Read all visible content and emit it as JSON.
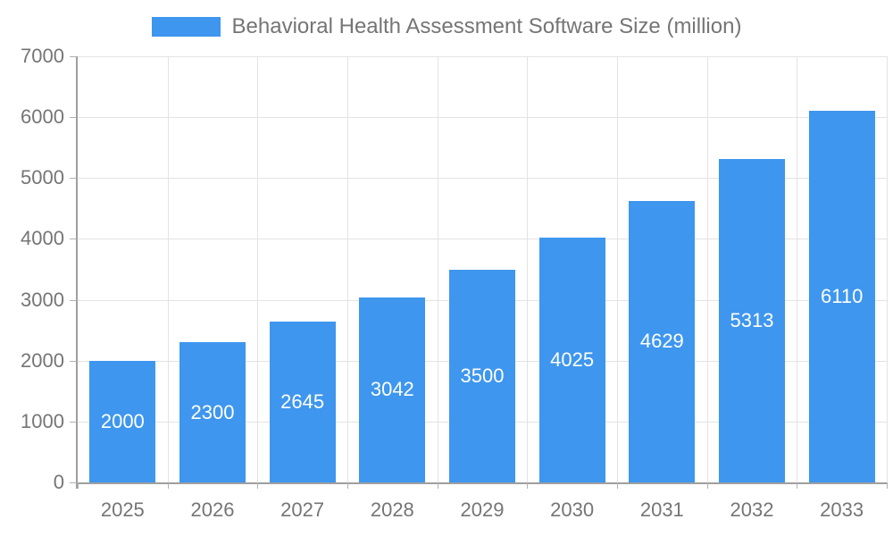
{
  "chart_data": {
    "type": "bar",
    "title": "Behavioral Health Assessment Software Size (million)",
    "categories": [
      "2025",
      "2026",
      "2027",
      "2028",
      "2029",
      "2030",
      "2031",
      "2032",
      "2033"
    ],
    "values": [
      2000,
      2300,
      2645,
      3042,
      3500,
      4025,
      4629,
      5313,
      6110
    ],
    "xlabel": "",
    "ylabel": "",
    "ylim": [
      0,
      7000
    ],
    "ytick_step": 1000,
    "ytick_labels": [
      "0",
      "1000",
      "2000",
      "3000",
      "4000",
      "5000",
      "6000",
      "7000"
    ],
    "grid": true,
    "legend_position": "top",
    "value_labels": "inside-center"
  },
  "legend": {
    "label": "Behavioral Health Assessment Software Size (million)"
  },
  "colors": {
    "bar": "#3e96ee",
    "bar_label": "#ffffff",
    "grid": "#e3e3e3",
    "axis": "#9e9e9e",
    "tick": "#b0b0b0",
    "text": "#757575",
    "background": "#ffffff"
  }
}
